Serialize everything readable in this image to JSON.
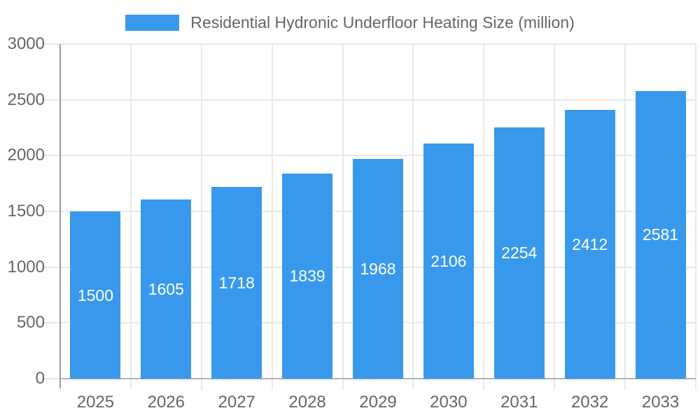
{
  "legend": {
    "label": "Residential Hydronic Underfloor Heating Size (million)"
  },
  "chart_data": {
    "type": "bar",
    "title": "Residential Hydronic Underfloor Heating Size (million)",
    "categories": [
      "2025",
      "2026",
      "2027",
      "2028",
      "2029",
      "2030",
      "2031",
      "2032",
      "2033"
    ],
    "values": [
      1500,
      1605,
      1718,
      1839,
      1968,
      2106,
      2254,
      2412,
      2581
    ],
    "series": [
      {
        "name": "Residential Hydronic Underfloor Heating Size (million)",
        "values": [
          1500,
          1605,
          1718,
          1839,
          1968,
          2106,
          2254,
          2412,
          2581
        ]
      }
    ],
    "xlabel": "",
    "ylabel": "",
    "ylim": [
      0,
      3000
    ],
    "y_ticks": [
      0,
      500,
      1000,
      1500,
      2000,
      2500,
      3000
    ],
    "grid": true,
    "legend_position": "top",
    "value_label_position": "inside-center",
    "colors": {
      "bar": "#3899ec",
      "grid": "#e8e8e8",
      "y_axis_line": "#999999",
      "x_axis_line": "#b3b3b3",
      "tick_text": "#666666",
      "legend_text": "#666666",
      "value_text": "#ffffff",
      "background": "#ffffff"
    }
  }
}
